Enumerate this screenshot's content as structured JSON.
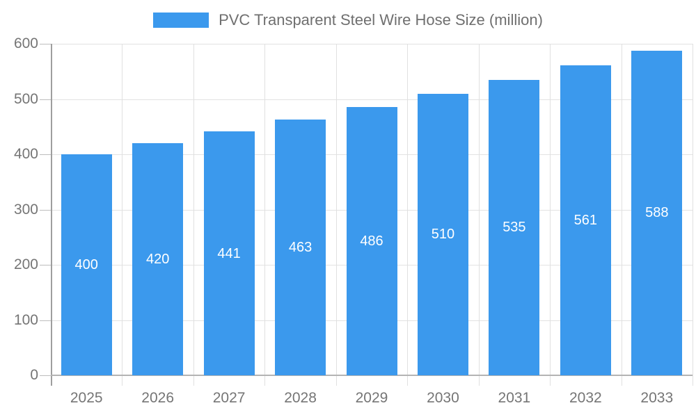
{
  "chart_data": {
    "type": "bar",
    "title": "PVC Transparent Steel Wire Hose Size (million)",
    "categories": [
      "2025",
      "2026",
      "2027",
      "2028",
      "2029",
      "2030",
      "2031",
      "2032",
      "2033"
    ],
    "series": [
      {
        "name": "PVC Transparent Steel Wire Hose Size (million)",
        "values": [
          400,
          420,
          441,
          463,
          486,
          510,
          535,
          561,
          588
        ]
      }
    ],
    "value_labels": [
      "400",
      "420",
      "441",
      "463",
      "486",
      "510",
      "535",
      "561",
      "588"
    ],
    "xlabel": "",
    "ylabel": "",
    "ylim": [
      0,
      600
    ],
    "ytick_step": 100,
    "ytick_labels": [
      "0",
      "100",
      "200",
      "300",
      "400",
      "500",
      "600"
    ],
    "grid": true,
    "legend_position": "top-center",
    "colors": {
      "bar": "#3b99ed",
      "value_label": "#ffffff",
      "axis_text": "#757575",
      "legend_text": "#6f6f6f",
      "gridline": "#e0e0e0",
      "axis_line": "#9e9e9e"
    }
  }
}
